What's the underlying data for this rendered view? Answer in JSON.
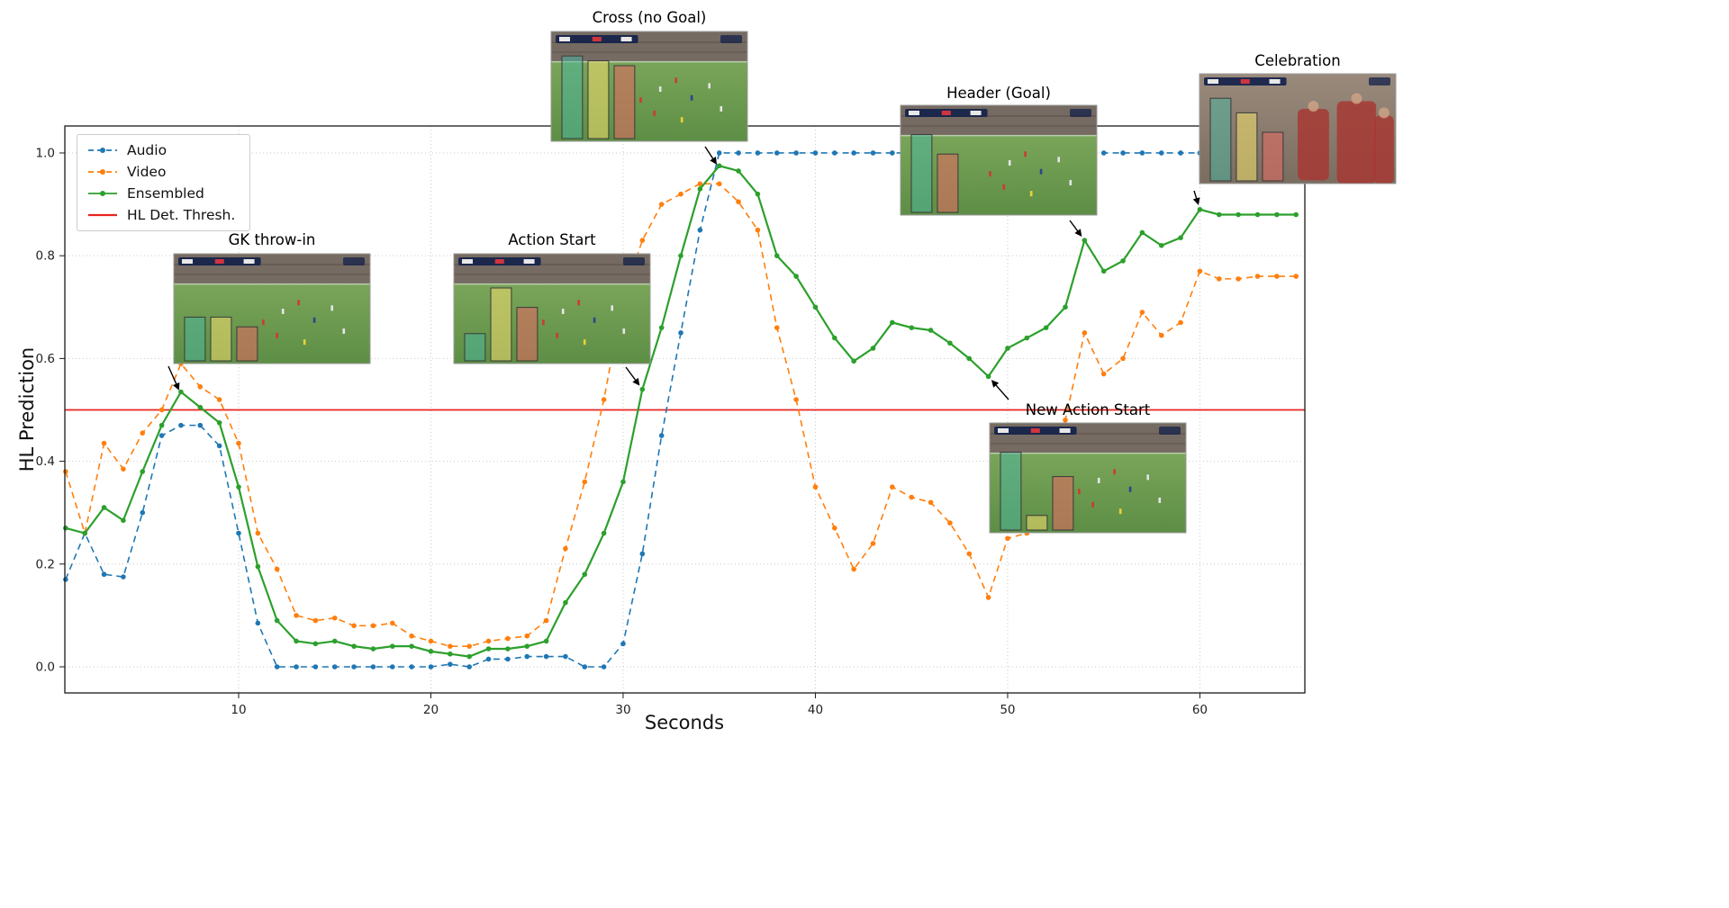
{
  "chart_data": {
    "type": "line",
    "title": "",
    "xlabel": "Seconds",
    "ylabel": "HL Prediction",
    "x_ticks": [
      10,
      20,
      30,
      40,
      50,
      60
    ],
    "y_ticks": [
      "0.0",
      "0.2",
      "0.4",
      "0.6",
      "0.8",
      "1.0"
    ],
    "xlim": [
      1,
      65.5
    ],
    "ylim": [
      -0.05,
      1.05
    ],
    "grid": true,
    "legend_position": "upper left",
    "legend": [
      "Audio",
      "Video",
      "Ensembled",
      "HL Det. Thresh."
    ],
    "threshold": {
      "name": "HL Det. Thresh.",
      "color": "#e82420",
      "value": 0.5
    },
    "x": [
      1,
      2,
      3,
      4,
      5,
      6,
      7,
      8,
      9,
      10,
      11,
      12,
      13,
      14,
      15,
      16,
      17,
      18,
      19,
      20,
      21,
      22,
      23,
      24,
      25,
      26,
      27,
      28,
      29,
      30,
      31,
      32,
      33,
      34,
      35,
      36,
      37,
      38,
      39,
      40,
      41,
      42,
      43,
      44,
      45,
      46,
      47,
      48,
      49,
      50,
      51,
      52,
      53,
      54,
      55,
      56,
      57,
      58,
      59,
      60,
      61,
      62,
      63,
      64,
      65
    ],
    "series": [
      {
        "name": "Audio",
        "color": "#1f77b4",
        "style": "dashed",
        "marker": "circle",
        "values": [
          0.17,
          0.26,
          0.18,
          0.175,
          0.3,
          0.45,
          0.47,
          0.47,
          0.43,
          0.26,
          0.085,
          0.0,
          0.0,
          0.0,
          0.0,
          0.0,
          0.0,
          0.0,
          0.0,
          0.0,
          0.005,
          0.0,
          0.015,
          0.015,
          0.02,
          0.02,
          0.02,
          0.0,
          0.0,
          0.045,
          0.22,
          0.45,
          0.65,
          0.85,
          1.0,
          1.0,
          1.0,
          1.0,
          1.0,
          1.0,
          1.0,
          1.0,
          1.0,
          1.0,
          1.0,
          1.0,
          1.0,
          1.0,
          1.0,
          1.0,
          1.0,
          1.0,
          1.0,
          1.0,
          1.0,
          1.0,
          1.0,
          1.0,
          1.0,
          1.0,
          1.0,
          1.0,
          1.0,
          1.0,
          1.0
        ]
      },
      {
        "name": "Video",
        "color": "#ff7f0e",
        "style": "dashed",
        "marker": "circle",
        "values": [
          0.38,
          0.26,
          0.435,
          0.385,
          0.455,
          0.5,
          0.59,
          0.545,
          0.52,
          0.435,
          0.26,
          0.19,
          0.1,
          0.09,
          0.095,
          0.08,
          0.08,
          0.085,
          0.06,
          0.05,
          0.04,
          0.04,
          0.05,
          0.055,
          0.06,
          0.09,
          0.23,
          0.36,
          0.52,
          0.72,
          0.83,
          0.9,
          0.92,
          0.94,
          0.94,
          0.905,
          0.85,
          0.66,
          0.52,
          0.35,
          0.27,
          0.19,
          0.24,
          0.35,
          0.33,
          0.32,
          0.28,
          0.22,
          0.135,
          0.25,
          0.26,
          0.35,
          0.48,
          0.65,
          0.57,
          0.6,
          0.69,
          0.645,
          0.67,
          0.77,
          0.755,
          0.755,
          0.76,
          0.76,
          0.76
        ]
      },
      {
        "name": "Ensembled",
        "color": "#2ca02c",
        "style": "solid",
        "marker": "circle",
        "values": [
          0.27,
          0.26,
          0.31,
          0.285,
          0.38,
          0.47,
          0.535,
          0.505,
          0.475,
          0.35,
          0.195,
          0.09,
          0.05,
          0.045,
          0.05,
          0.04,
          0.035,
          0.04,
          0.04,
          0.03,
          0.025,
          0.02,
          0.035,
          0.035,
          0.04,
          0.05,
          0.125,
          0.18,
          0.26,
          0.36,
          0.54,
          0.66,
          0.8,
          0.93,
          0.975,
          0.965,
          0.92,
          0.8,
          0.76,
          0.7,
          0.64,
          0.595,
          0.62,
          0.67,
          0.66,
          0.655,
          0.63,
          0.6,
          0.565,
          0.62,
          0.64,
          0.66,
          0.7,
          0.83,
          0.77,
          0.79,
          0.845,
          0.82,
          0.835,
          0.89,
          0.88,
          0.88,
          0.88,
          0.88,
          0.88
        ]
      }
    ],
    "annotations": [
      {
        "label": "GK throw-in",
        "time_s": 7,
        "value": 0.53
      },
      {
        "label": "Action Start",
        "time_s": 31,
        "value": 0.54
      },
      {
        "label": "Cross (no Goal)",
        "time_s": 35,
        "value": 0.97
      },
      {
        "label": "Header (Goal)",
        "time_s": 54,
        "value": 0.83
      },
      {
        "label": "New Action Start",
        "time_s": 49,
        "value": 0.565
      },
      {
        "label": "Celebration",
        "time_s": 60,
        "value": 0.89
      }
    ]
  }
}
